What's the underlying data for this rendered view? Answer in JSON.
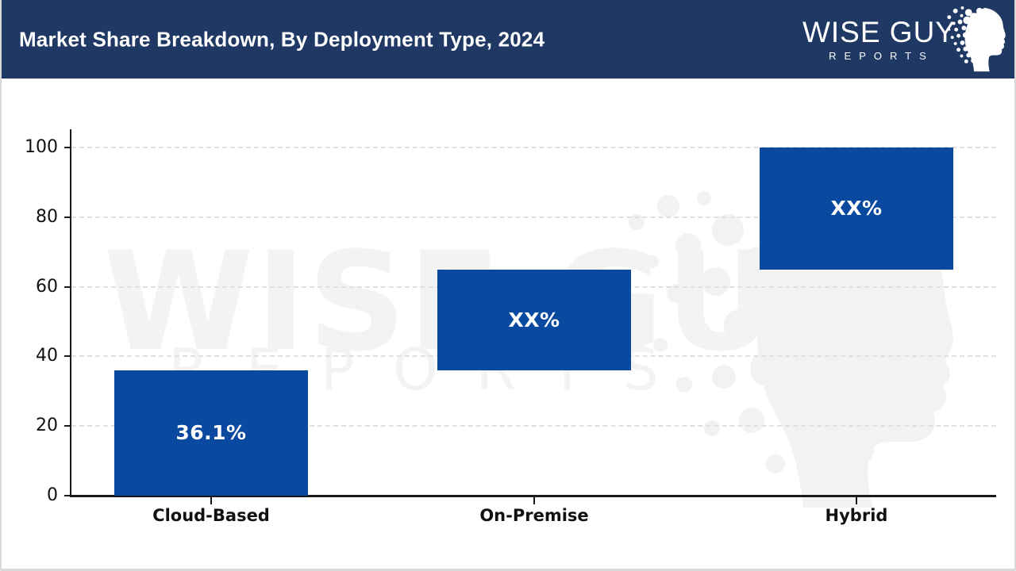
{
  "header": {
    "title": "Market Share Breakdown, By Deployment Type, 2024",
    "logo": {
      "line1": "WISE GUY",
      "line2": "REPORTS"
    }
  },
  "watermark": {
    "line1": "WISE GUY",
    "line2": "REPORTS"
  },
  "colors": {
    "header_bg": "#1F3864",
    "bar": "#0A49A0",
    "bar_label": "#ffffff",
    "grid": "#e0e0e0",
    "axis": "#1a1a1a",
    "watermark": "#f3f3f3"
  },
  "chart_data": {
    "type": "bar",
    "subtype": "floating-range-waterfall",
    "title": "Market Share Breakdown, By Deployment Type, 2024",
    "categories": [
      "Cloud-Based",
      "On-Premise",
      "Hybrid"
    ],
    "segments": [
      {
        "category": "Cloud-Based",
        "start": 0,
        "end": 36.1,
        "label": "36.1%"
      },
      {
        "category": "On-Premise",
        "start": 36.1,
        "end": 65,
        "label": "XX%"
      },
      {
        "category": "Hybrid",
        "start": 65,
        "end": 100,
        "label": "XX%"
      }
    ],
    "xlabel": "",
    "ylabel": "",
    "ylim": [
      0,
      100
    ],
    "yticks": [
      0,
      20,
      40,
      60,
      80,
      100
    ],
    "grid": "dashed-horizontal",
    "legend": "none"
  }
}
